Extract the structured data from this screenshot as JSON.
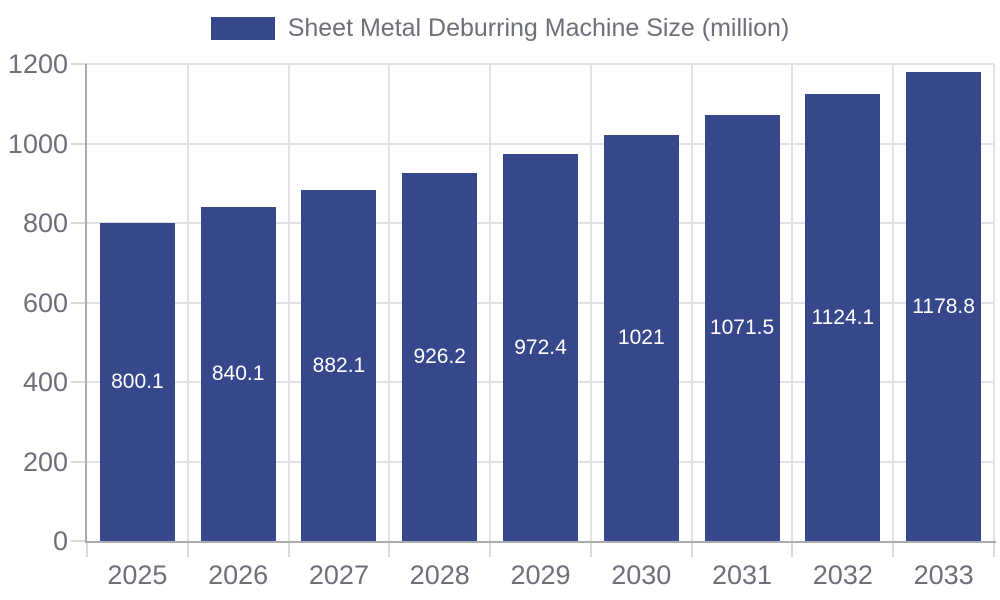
{
  "legend": {
    "label": "Sheet Metal Deburring Machine Size (million)"
  },
  "chart_data": {
    "type": "bar",
    "title": "",
    "legend_entries": [
      "Sheet Metal Deburring Machine Size (million)"
    ],
    "legend_position": "top-center",
    "categories": [
      "2025",
      "2026",
      "2027",
      "2028",
      "2029",
      "2030",
      "2031",
      "2032",
      "2033"
    ],
    "values": [
      800.1,
      840.1,
      882.1,
      926.2,
      972.4,
      1021,
      1071.5,
      1124.1,
      1178.8
    ],
    "xlabel": "",
    "ylabel": "",
    "ylim": [
      0,
      1200
    ],
    "ytick_step": 200,
    "grid": true,
    "value_labels_inside_bars": true,
    "colors": {
      "bar": "#36478B",
      "axis_text": "#6E7079",
      "value_label": "#FFFFFF",
      "grid_line": "#E1E1E6",
      "tick_line": "#D8D8DD",
      "axis_line": "#A9ABAF",
      "background": "#FFFFFF"
    }
  }
}
